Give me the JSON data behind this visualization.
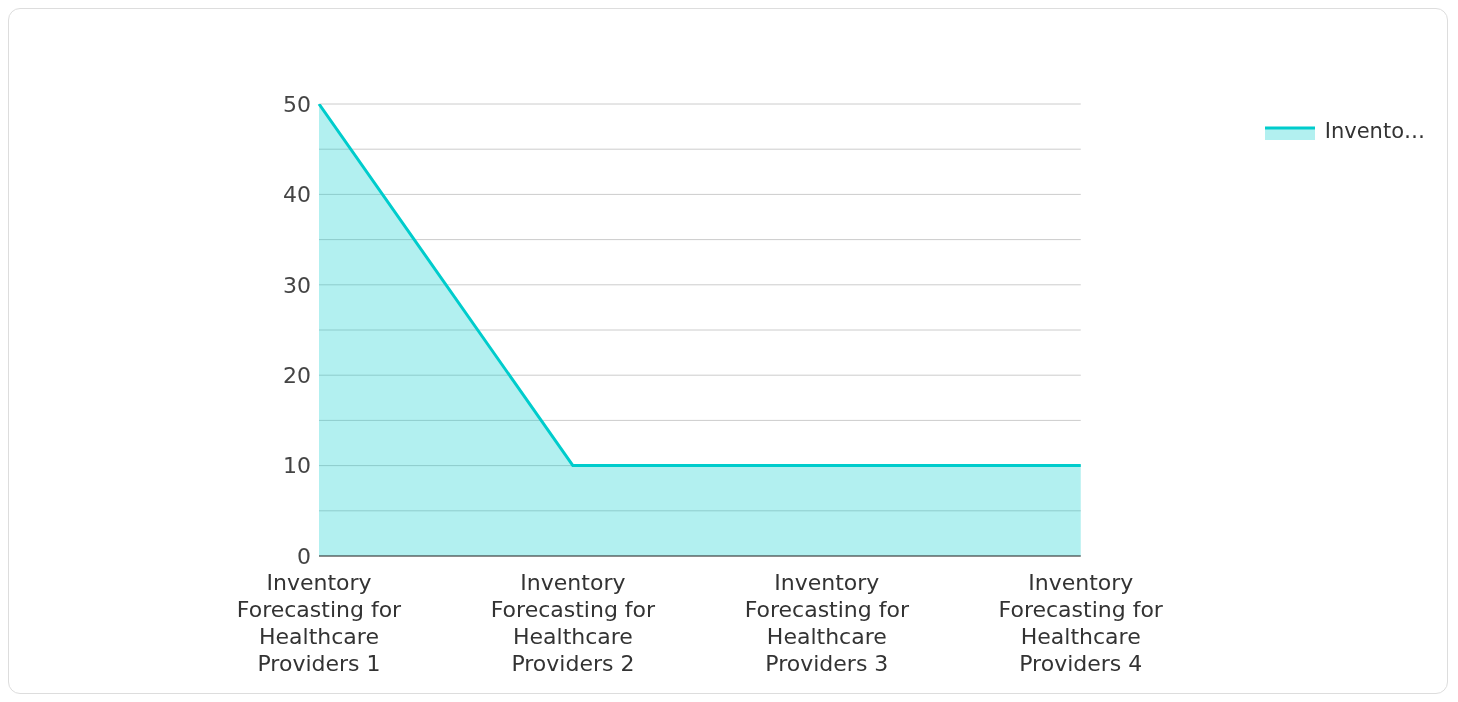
{
  "chart_data": {
    "type": "area",
    "categories": [
      "Inventory Forecasting for Healthcare Providers 1",
      "Inventory Forecasting for Healthcare Providers 2",
      "Inventory Forecasting for Healthcare Providers 3",
      "Inventory Forecasting for Healthcare Providers 4"
    ],
    "series": [
      {
        "name": "Invento…",
        "color": "#00cccc",
        "values": [
          50,
          10,
          10,
          10
        ]
      }
    ],
    "ylim": [
      0,
      50
    ],
    "yticks": [
      0,
      {
        "value": 5,
        "label": null
      },
      10,
      {
        "value": 15,
        "label": null
      },
      20,
      {
        "value": 25,
        "label": null
      },
      30,
      {
        "value": 35,
        "label": null
      },
      40,
      {
        "value": 45,
        "label": null
      },
      50
    ],
    "grid": "y",
    "legend": "top right"
  }
}
